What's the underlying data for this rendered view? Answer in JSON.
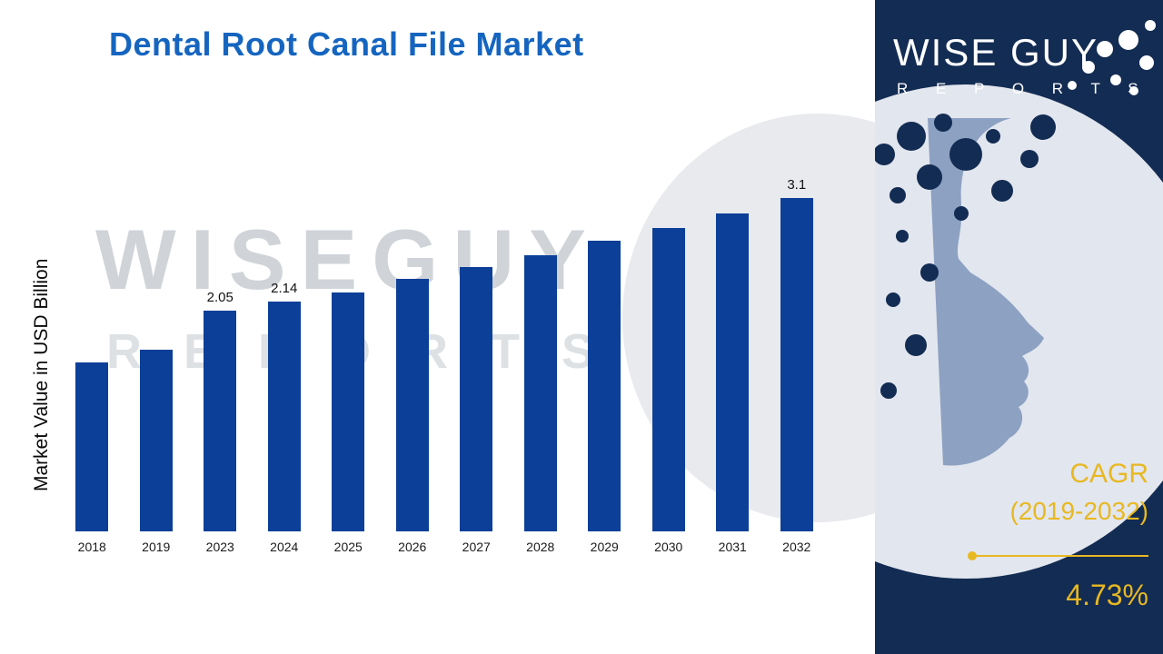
{
  "title": "Dental Root Canal File Market",
  "ylabel": "Market Value in USD Billion",
  "watermark": {
    "line1": "WISEGUY",
    "line2": "REPORTS"
  },
  "logo": {
    "line1": "WISE GUY",
    "line2": "R E P O R T S"
  },
  "sidebar": {
    "cagr_label": "CAGR",
    "cagr_range": "(2019-2032)",
    "cagr_value": "4.73%"
  },
  "colors": {
    "bar": "#0c3f98",
    "title": "#1565c0",
    "panel": "#132c53",
    "accent": "#e8b822"
  },
  "chart_data": {
    "type": "bar",
    "title": "Dental Root Canal File Market",
    "xlabel": "",
    "ylabel": "Market Value in USD Billion",
    "categories": [
      "2018",
      "2019",
      "2023",
      "2024",
      "2025",
      "2026",
      "2027",
      "2028",
      "2029",
      "2030",
      "2031",
      "2032"
    ],
    "values": [
      1.57,
      1.69,
      2.05,
      2.14,
      2.22,
      2.35,
      2.46,
      2.57,
      2.7,
      2.82,
      2.96,
      3.1
    ],
    "data_labels": [
      "",
      "",
      "2.05",
      "2.14",
      "",
      "",
      "",
      "",
      "",
      "",
      "",
      "3.1"
    ],
    "ylim": [
      0,
      3.3
    ],
    "grid": false,
    "legend": "none",
    "bar_color": "#0c3f98"
  }
}
